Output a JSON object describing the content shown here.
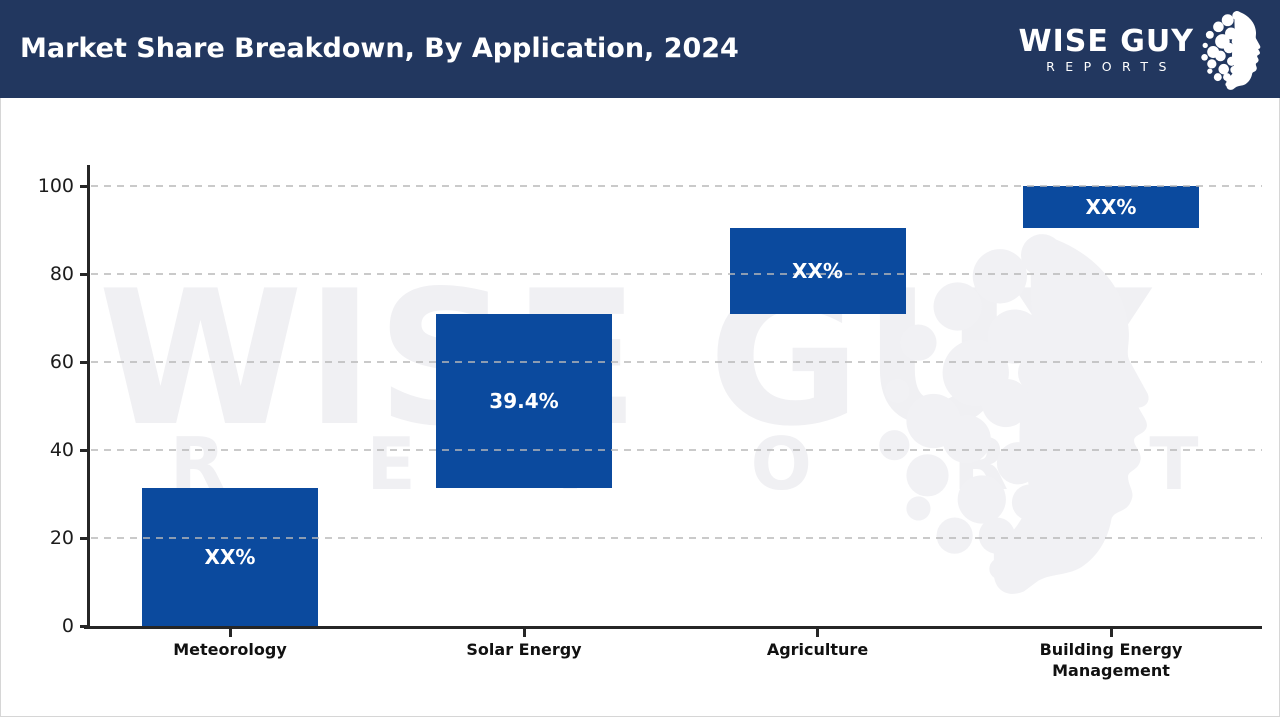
{
  "header": {
    "title": "Market Share Breakdown, By Application, 2024",
    "logo": {
      "line1": "WISE GUY",
      "line2": "REPORTS"
    }
  },
  "watermark": {
    "line1": "WISE GUY",
    "line2": "R E P O R T S"
  },
  "colors": {
    "header_bg": "#22375f",
    "bar": "#0b4a9e",
    "axis": "#262626",
    "grid": "#d4d4d4",
    "border": "#d6d6d6",
    "bar_label": "#ffffff",
    "watermark": "#f0f0f3"
  },
  "chart_data": {
    "type": "bar",
    "subtype": "waterfall",
    "title": "Market Share Breakdown, By Application, 2024",
    "categories": [
      "Meteorology",
      "Solar Energy",
      "Agriculture",
      "Building Energy Management"
    ],
    "segments": [
      {
        "category": "Meteorology",
        "start": 0,
        "end": 31.4,
        "label": "XX%"
      },
      {
        "category": "Solar Energy",
        "start": 31.4,
        "end": 70.8,
        "label": "39.4%"
      },
      {
        "category": "Agriculture",
        "start": 70.8,
        "end": 90.5,
        "label": "XX%"
      },
      {
        "category": "Building Energy Management",
        "start": 90.5,
        "end": 100,
        "label": "XX%"
      }
    ],
    "xlabel": "",
    "ylabel": "",
    "ylim": [
      0,
      100
    ],
    "yticks": [
      0,
      20,
      40,
      60,
      80,
      100
    ],
    "grid": "horizontal-dashed-over-bars",
    "legend": "none",
    "bar_color": "#0b4a9e"
  }
}
